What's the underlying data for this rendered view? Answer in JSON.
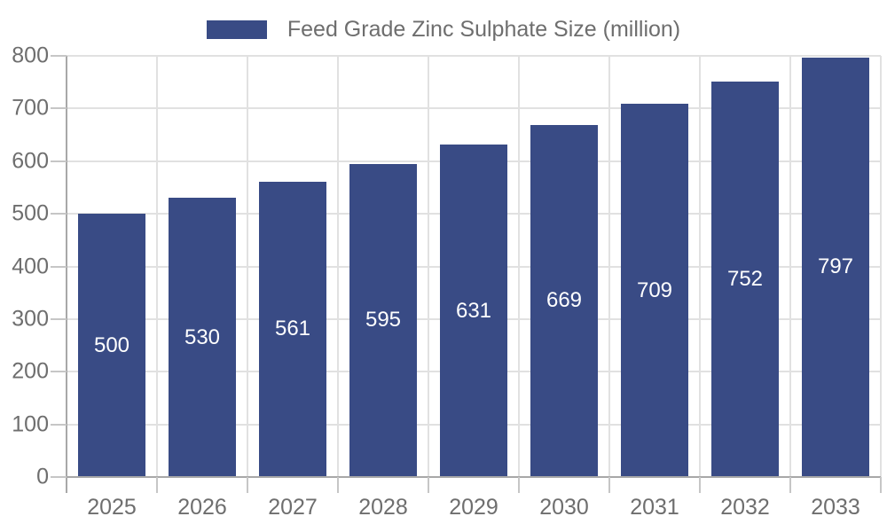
{
  "chart_data": {
    "type": "bar",
    "title": "Feed Grade Zinc Sulphate Size (million)",
    "categories": [
      "2025",
      "2026",
      "2027",
      "2028",
      "2029",
      "2030",
      "2031",
      "2032",
      "2033"
    ],
    "values": [
      500,
      530,
      561,
      595,
      631,
      669,
      709,
      752,
      797
    ],
    "xlabel": "",
    "ylabel": "",
    "ylim": [
      0,
      800
    ],
    "ytick_step": 100,
    "yticks": [
      0,
      100,
      200,
      300,
      400,
      500,
      600,
      700,
      800
    ],
    "grid": true,
    "legend_position": "top-center",
    "value_label_position": "inside-center"
  },
  "style": {
    "bar_color": "#394B85",
    "grid_color": "#E1E1E1",
    "axis_color": "#A8A8A8",
    "tick_color": "#C6C6C6",
    "tick_label_color": "#6E6E6E",
    "legend_text_color": "#6E6E6E",
    "value_label_color": "#FFFFFF",
    "background_color": "#FFFFFF"
  }
}
